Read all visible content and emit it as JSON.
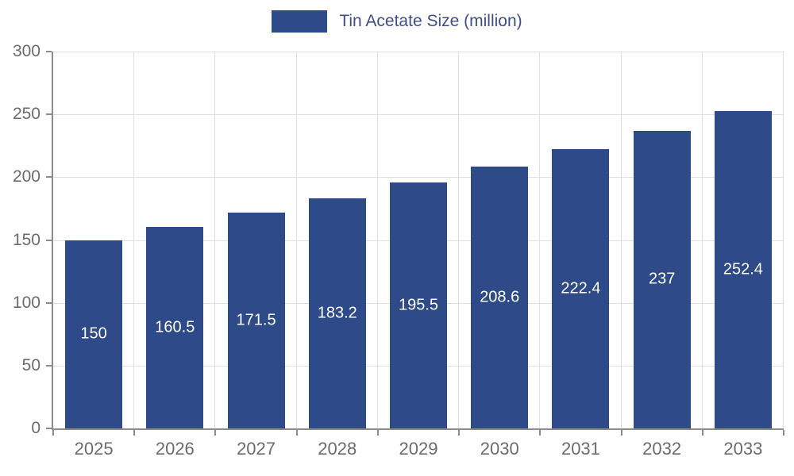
{
  "chart_data": {
    "type": "bar",
    "title": "",
    "series_name": "Tin Acetate Size (million)",
    "categories": [
      "2025",
      "2026",
      "2027",
      "2028",
      "2029",
      "2030",
      "2031",
      "2032",
      "2033"
    ],
    "values": [
      150,
      160.5,
      171.5,
      183.2,
      195.5,
      208.6,
      222.4,
      237,
      252.4
    ],
    "value_labels": [
      "150",
      "160.5",
      "171.5",
      "183.2",
      "195.5",
      "208.6",
      "222.4",
      "237",
      "252.4"
    ],
    "xlabel": "",
    "ylabel": "",
    "ylim": [
      0,
      300
    ],
    "yticks": [
      0,
      50,
      100,
      150,
      200,
      250,
      300
    ],
    "grid": true,
    "legend_position": "top",
    "colors": {
      "bar": "#2E4A89",
      "axis": "#8C8C8C",
      "grid": "#E0E0E0",
      "tick_label": "#6B6B6B",
      "value_label": "#FFFFFF",
      "legend_text": "#3E4F87"
    }
  }
}
